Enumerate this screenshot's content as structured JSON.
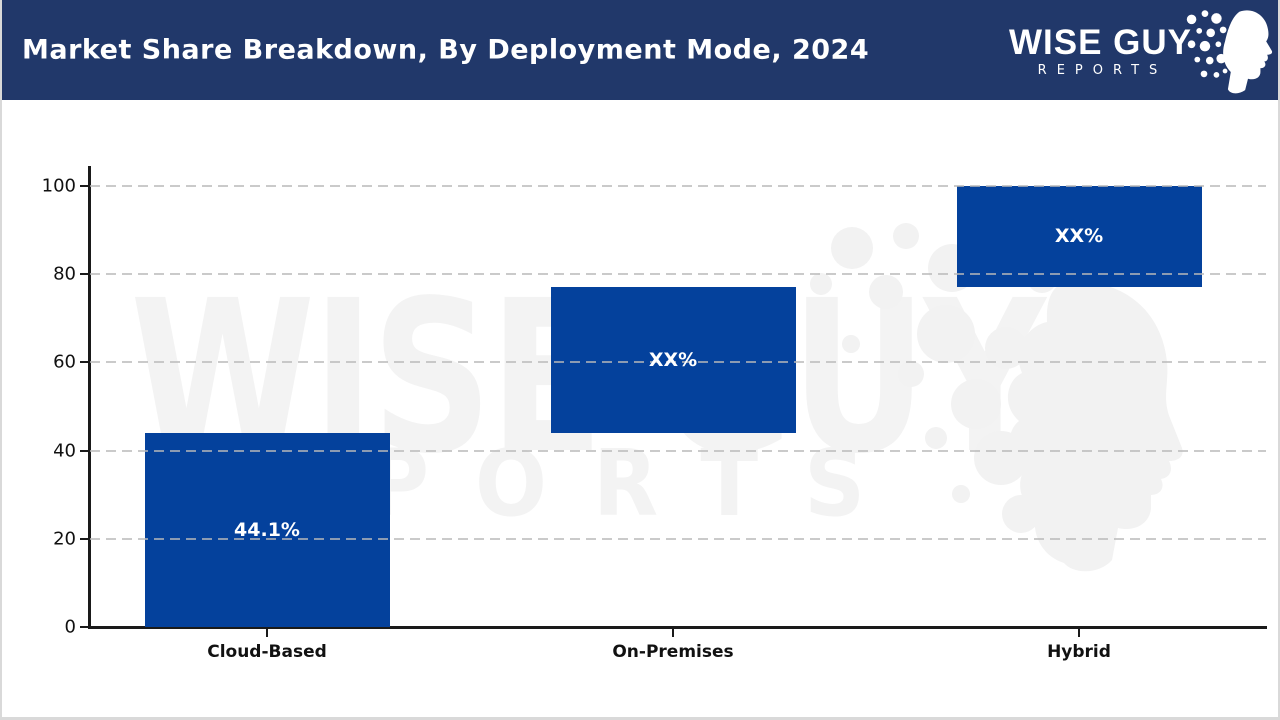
{
  "header": {
    "title": "Market Share Breakdown, By Deployment Mode, 2024",
    "logo": {
      "brand_top": "WISE GUY",
      "brand_bottom": "REPORTS"
    }
  },
  "watermark": {
    "big_text": "WISE GUY",
    "small_text": "REPORTS"
  },
  "colors": {
    "header_bg": "#21386a",
    "bar_blue": "#04419c",
    "bar_label": "#ffffff",
    "grid": "#d9d9d9",
    "axis": "#1a1a1a",
    "watermark": "#f3f3f3"
  },
  "chart_data": {
    "type": "bar",
    "subtype": "stacked-waterfall",
    "title": "Market Share Breakdown, By Deployment Mode, 2024",
    "categories": [
      "Cloud-Based",
      "On-Premises",
      "Hybrid"
    ],
    "segments": [
      {
        "category": "Cloud-Based",
        "label": "44.1%",
        "from": 0,
        "to": 44.1,
        "value": 44.1
      },
      {
        "category": "On-Premises",
        "label": "XX%",
        "from": 44.1,
        "to": 77.2,
        "value_estimated": 33.1
      },
      {
        "category": "Hybrid",
        "label": "XX%",
        "from": 77.2,
        "to": 100,
        "value_estimated": 22.8
      }
    ],
    "yticks": [
      0,
      20,
      40,
      60,
      80,
      100
    ],
    "ylim": [
      0,
      100
    ],
    "grid": "dashed-horizontal",
    "legend": "none",
    "bar_color": "#04419c",
    "label_color": "#ffffff"
  }
}
